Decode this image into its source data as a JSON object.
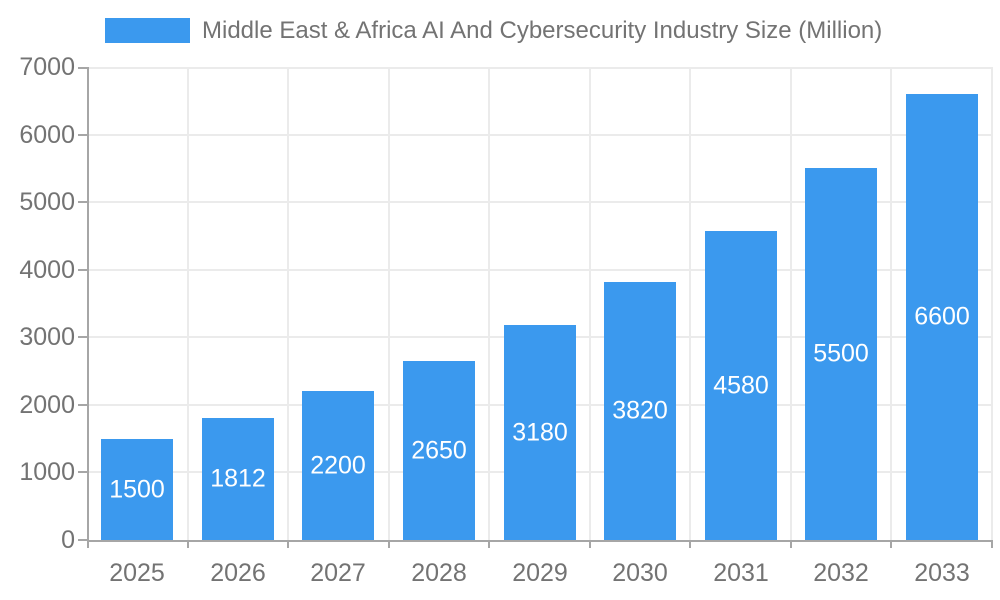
{
  "chart_data": {
    "type": "bar",
    "title": "Middle East & Africa AI And Cybersecurity Industry Size (Million)",
    "categories": [
      "2025",
      "2026",
      "2027",
      "2028",
      "2029",
      "2030",
      "2031",
      "2032",
      "2033"
    ],
    "values": [
      1500,
      1812,
      2200,
      2650,
      3180,
      3820,
      4580,
      5500,
      6600
    ],
    "xlabel": "",
    "ylabel": "",
    "ylim": [
      0,
      7000
    ],
    "ytick_step": 1000,
    "ytick_labels": [
      "0",
      "1000",
      "2000",
      "3000",
      "4000",
      "5000",
      "6000",
      "7000"
    ],
    "grid": "on",
    "legend_position": "top",
    "colors": {
      "bar": "#3B99EE",
      "value_label": "#FFFFFF",
      "axis_text": "#737373",
      "grid_line": "#EBEBEB",
      "axis_line": "#A6A6A6",
      "background": "#FFFFFF"
    }
  }
}
